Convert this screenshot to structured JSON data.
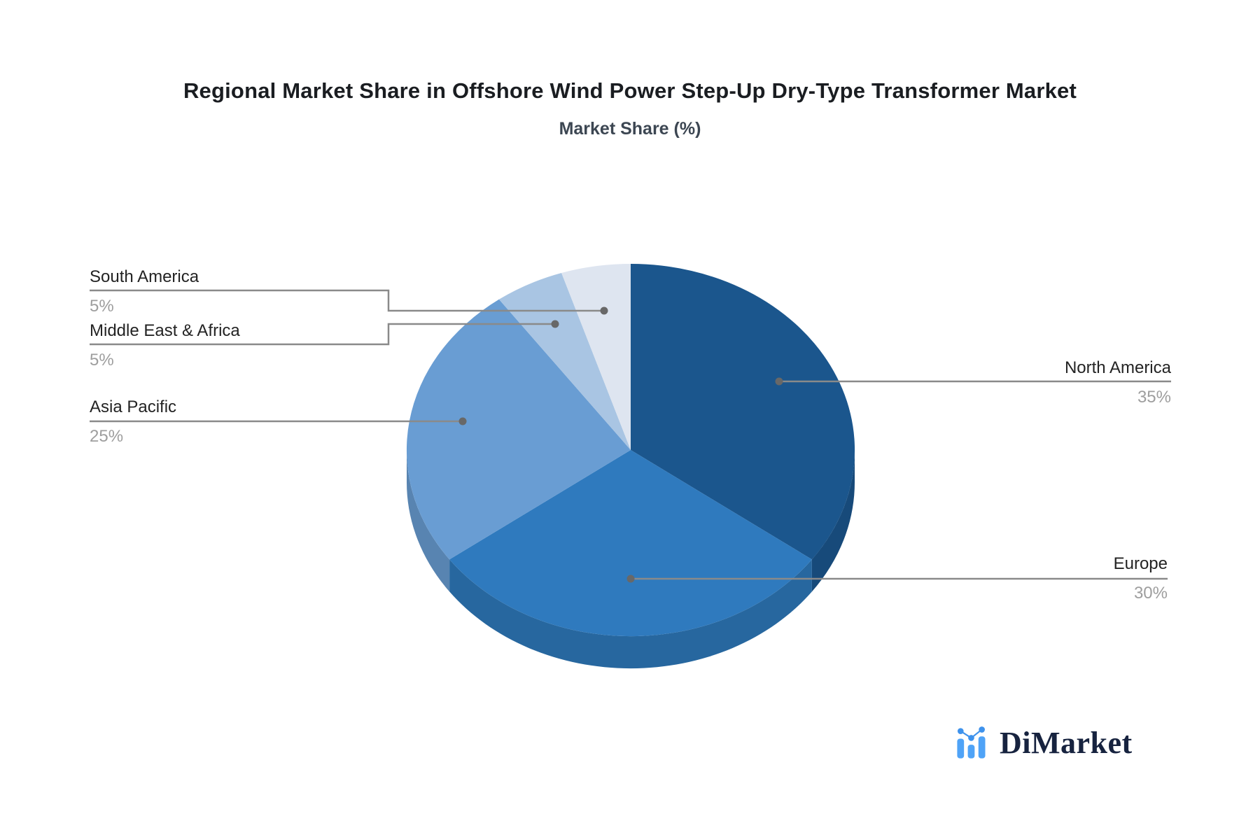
{
  "header": {
    "title": "Regional Market Share in Offshore Wind Power Step-Up Dry-Type Transformer Market",
    "subtitle": "Market Share (%)"
  },
  "chart_data": {
    "type": "pie",
    "title": "Regional Market Share in Offshore Wind Power Step-Up Dry-Type Transformer Market",
    "subtitle": "Market Share (%)",
    "unit": "%",
    "effect": "3d",
    "direction": "clockwise",
    "start_angle_deg": 0,
    "legend_position": "none",
    "labeling": "leader-lines",
    "slices": [
      {
        "label": "North America",
        "value": 35,
        "display_value": "35%",
        "color": "#1B568D",
        "side_color": "#174A7A"
      },
      {
        "label": "Europe",
        "value": 30,
        "display_value": "30%",
        "color": "#2F7ABE",
        "side_color": "#27679F"
      },
      {
        "label": "Asia Pacific",
        "value": 25,
        "display_value": "25%",
        "color": "#699DD3",
        "side_color": "#5884B1"
      },
      {
        "label": "Middle East & Africa",
        "value": 5,
        "display_value": "5%",
        "color": "#A9C5E3",
        "side_color": "#8FA8C2"
      },
      {
        "label": "South America",
        "value": 5,
        "display_value": "5%",
        "color": "#DEE5F0",
        "side_color": "#BCC8D6"
      }
    ],
    "label_text_color": "#232323",
    "value_text_color": "#9e9e9e",
    "leader_line_color": "#8a8a8a",
    "leader_dot_color": "#686868"
  },
  "logo": {
    "text": "DiMarket",
    "icon": "bar-chart-with-trendline-icon",
    "text_color": "#17233f",
    "bar_color": "#4fa3f7",
    "dot_color": "#3e92ec"
  }
}
